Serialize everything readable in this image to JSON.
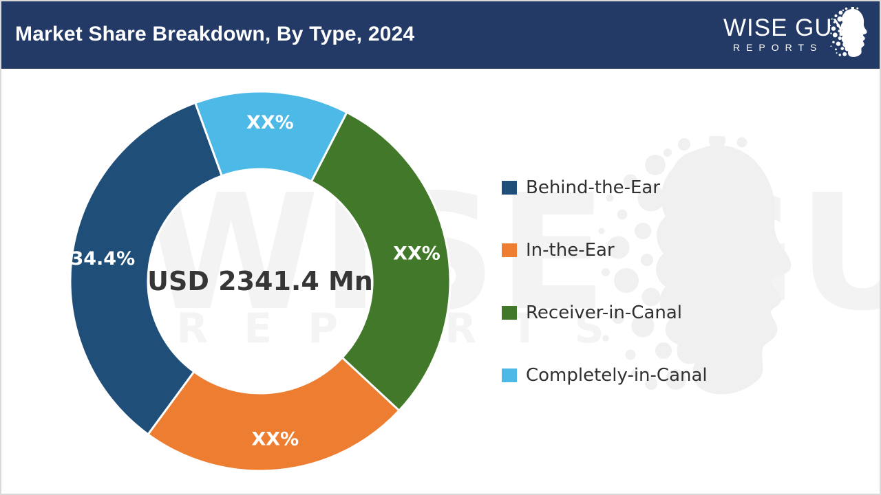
{
  "header": {
    "title": "Market Share Breakdown, By Type, 2024",
    "bg_color": "#243a66",
    "logo": {
      "line1": "WISE GUY",
      "line2": "REPORTS"
    }
  },
  "watermark": {
    "line1": "WISE GUY",
    "line2": "REPORTS"
  },
  "chart_data": {
    "type": "pie",
    "title": "Market Share Breakdown, By Type, 2024",
    "donut": true,
    "center_text": "USD 2341.4 Mn",
    "start_angle_deg": -20,
    "inner_radius_ratio": 0.59,
    "legend_position": "right",
    "slices": [
      {
        "name": "Behind-the-Ear",
        "label": "34.4%",
        "value": 34.4,
        "color": "#1f4e79"
      },
      {
        "name": "In-the-Ear",
        "label": "XX%",
        "value": 23.1,
        "color": "#ed7d31"
      },
      {
        "name": "Receiver-in-Canal",
        "label": "XX%",
        "value": 29.4,
        "color": "#42782a"
      },
      {
        "name": "Completely-in-Canal",
        "label": "XX%",
        "value": 13.1,
        "color": "#4cb9e7"
      }
    ],
    "draw_order": [
      3,
      2,
      1,
      0
    ]
  }
}
